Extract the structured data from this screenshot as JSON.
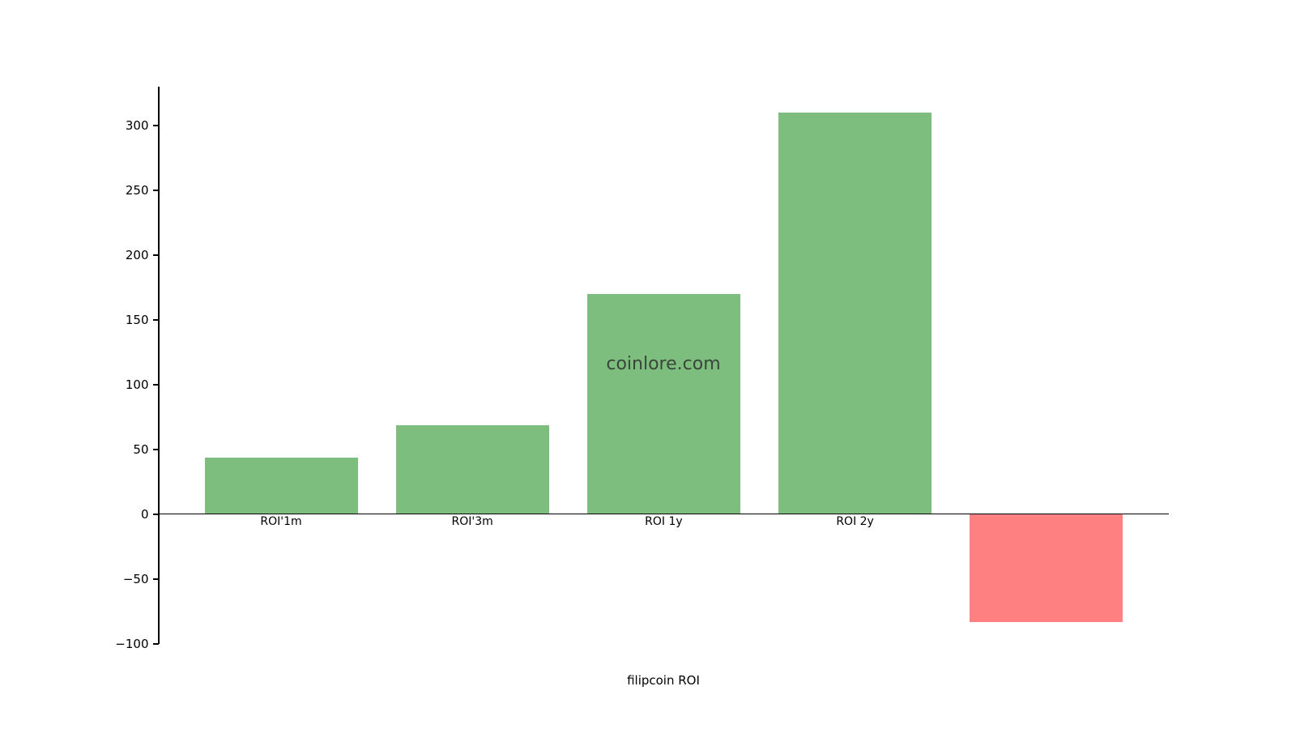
{
  "page": {
    "background_color": "#ffffff"
  },
  "watermark": {
    "text": "coinlore.com",
    "color": "#282828"
  },
  "chart_data": {
    "type": "bar",
    "title": "filipcoin ROI",
    "categories": [
      "ROI'1m",
      "ROI'3m",
      "ROI 1y",
      "ROI 2y",
      ""
    ],
    "values": [
      44,
      69,
      170,
      310,
      -83
    ],
    "positive_color": "#7dbd7e",
    "negative_color": "#ff8080",
    "axis_color": "#000000",
    "text_color": "#000000",
    "yticks": [
      -100,
      -50,
      0,
      50,
      100,
      150,
      200,
      250,
      300
    ],
    "ytick_labels": [
      "−100",
      "−50",
      "0",
      "50",
      "100",
      "150",
      "200",
      "250",
      "300"
    ],
    "ylim": [
      -100,
      330
    ],
    "xlabel": "",
    "ylabel": "",
    "grid": false,
    "legend": false
  }
}
